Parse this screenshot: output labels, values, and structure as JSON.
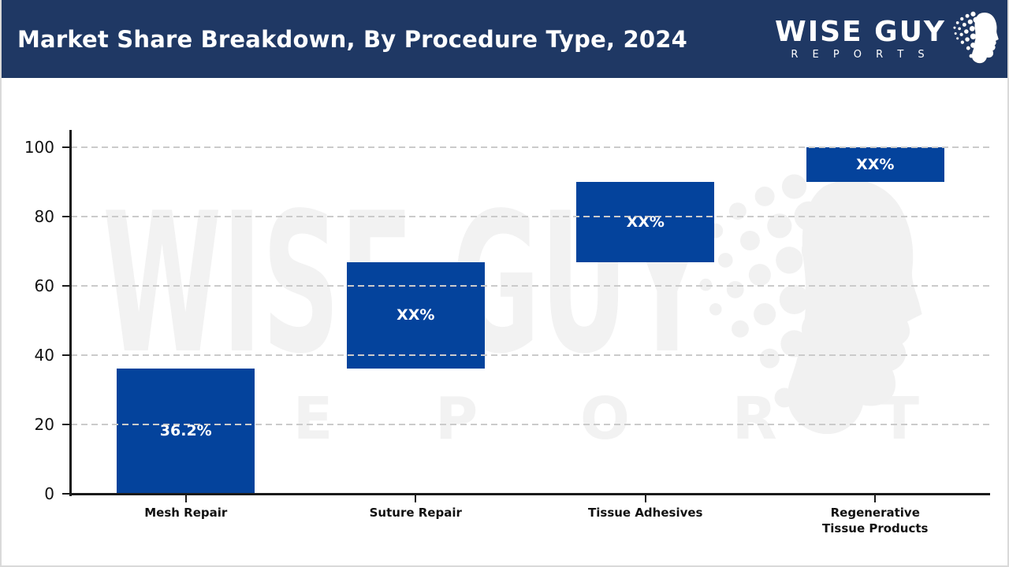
{
  "header": {
    "title": "Market Share Breakdown, By Procedure Type, 2024",
    "logo": {
      "name": "WISE GUY",
      "tagline": "R E P O R T S"
    }
  },
  "watermark": {
    "line1": "WISE GUY",
    "line2": "R E P O R T S"
  },
  "colors": {
    "header_bg": "#1f3864",
    "bar": "#04439c",
    "bar_label": "#ffffff",
    "grid": "#cbcbcb",
    "axis": "#1a1a1a",
    "watermark": "#f2f2f2"
  },
  "chart_data": {
    "type": "bar",
    "subtype": "waterfall-stacked-percent",
    "title": "Market Share Breakdown, By Procedure Type, 2024",
    "categories": [
      "Mesh Repair",
      "Suture Repair",
      "Tissue Adhesives",
      "Regenerative Tissue Products"
    ],
    "tick_labels": [
      "Mesh Repair",
      "Suture Repair",
      "Tissue Adhesives",
      "Regenerative\nTissue Products"
    ],
    "segments": [
      {
        "category": "Mesh Repair",
        "start": 0,
        "end": 36.2,
        "value_label": "36.2%"
      },
      {
        "category": "Suture Repair",
        "start": 36.2,
        "end": 66.9,
        "value_label": "XX%"
      },
      {
        "category": "Tissue Adhesives",
        "start": 66.9,
        "end": 90.1,
        "value_label": "XX%"
      },
      {
        "category": "Regenerative Tissue Products",
        "start": 90.1,
        "end": 100,
        "value_label": "XX%"
      }
    ],
    "xlabel": "",
    "ylabel": "",
    "ylim": [
      0,
      100
    ],
    "yticks": [
      0,
      20,
      40,
      60,
      80,
      100
    ],
    "grid": "horizontal-dashed-over-bars",
    "legend_position": "none"
  }
}
